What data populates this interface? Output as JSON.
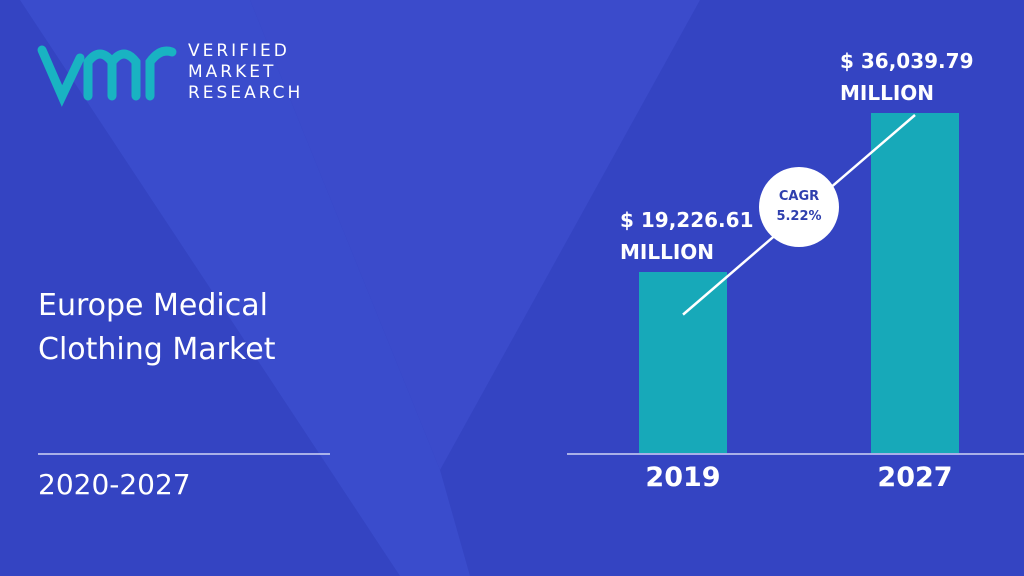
{
  "logo": [
    "VERIFIED",
    "MARKET",
    "RESEARCH"
  ],
  "chart_data": {
    "type": "bar",
    "title": "Europe Medical Clothing Market",
    "subtitle": "2020-2027",
    "categories": [
      "2019",
      "2027"
    ],
    "values": [
      19226.61,
      36039.79
    ],
    "value_labels": [
      "$ 19,226.61\nMILLION",
      "$ 36,039.79\nMILLION"
    ],
    "color": "#17a9b9",
    "annotations": [
      "CAGR",
      "5.22%"
    ]
  }
}
